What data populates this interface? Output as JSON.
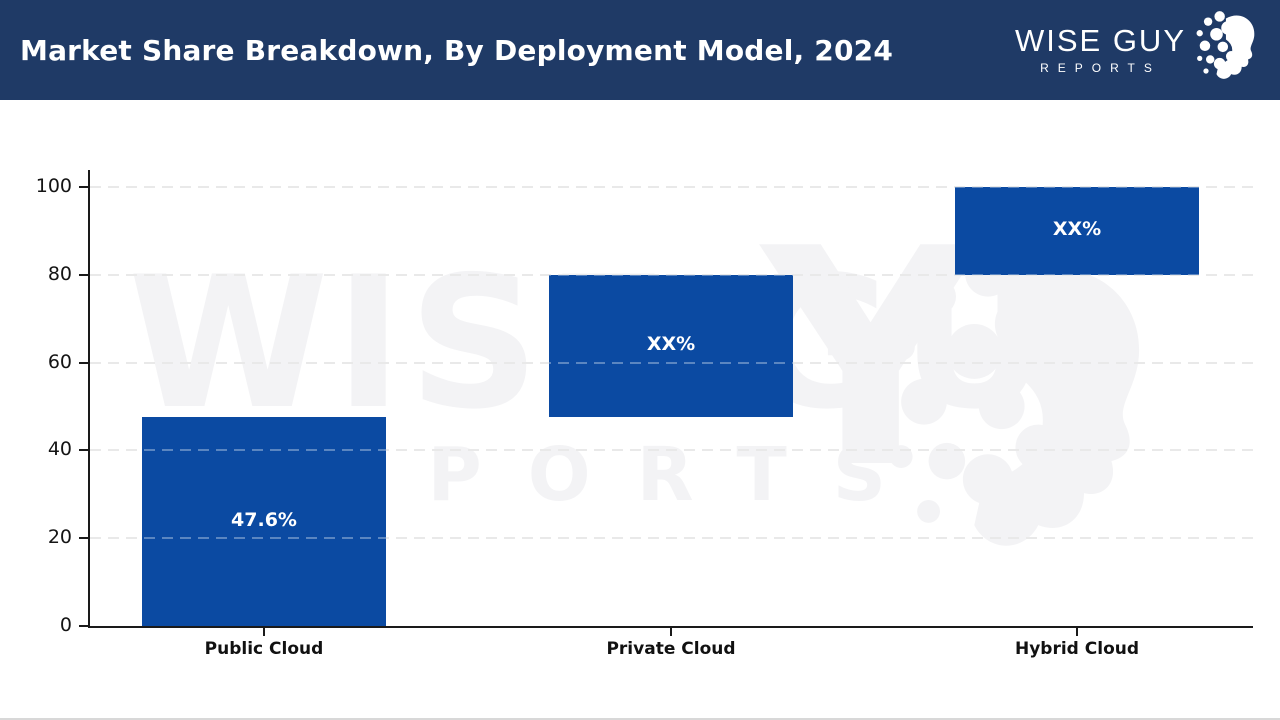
{
  "header": {
    "title": "Market Share Breakdown, By Deployment Model, 2024",
    "logo": {
      "line1": "WISE GUY",
      "line2": "REPORTS"
    }
  },
  "watermark": {
    "big_text": "WISE GU",
    "y_text": "Y",
    "small_text": "REPORTS"
  },
  "colors": {
    "header_bg": "#1F3A66",
    "bar_blue": "#0B4AA2",
    "axis": "#1A1A1A",
    "gridline": "#DEDEDE",
    "watermark": "#F3F3F5",
    "bar_label_text": "#FFFFFF"
  },
  "chart_data": {
    "type": "bar",
    "subtype": "waterfall",
    "title": "Market Share Breakdown, By Deployment Model, 2024",
    "categories": [
      "Public Cloud",
      "Private Cloud",
      "Hybrid Cloud"
    ],
    "segments": [
      {
        "category": "Public Cloud",
        "start": 0,
        "end": 47.6,
        "label": "47.6%"
      },
      {
        "category": "Private Cloud",
        "start": 47.6,
        "end": 80,
        "label": "XX%"
      },
      {
        "category": "Hybrid Cloud",
        "start": 80,
        "end": 100,
        "label": "XX%"
      }
    ],
    "yticks": [
      0,
      20,
      40,
      60,
      80,
      100
    ],
    "ylim": [
      0,
      100
    ],
    "xlabel": "",
    "ylabel": "",
    "grid": "horizontal-dashed",
    "legend": "none",
    "bar_color": "#0B4AA2"
  }
}
